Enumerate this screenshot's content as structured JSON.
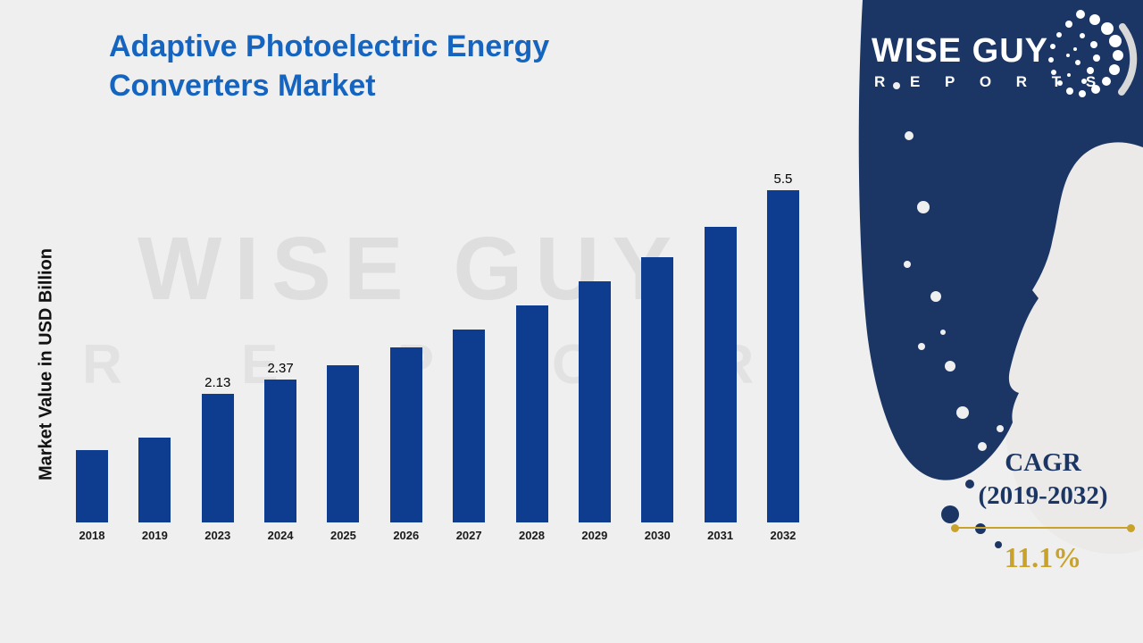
{
  "header": {
    "title": "Adaptive Photoelectric Energy Converters Market"
  },
  "logo": {
    "line1": "WISE GUY",
    "line2": "R E P O R T S"
  },
  "watermark": {
    "line1": "WISE GUY",
    "line2": "R E P O R T S"
  },
  "cagr": {
    "label": "CAGR",
    "range": "(2019-2032)",
    "value": "11.1%"
  },
  "chart_data": {
    "type": "bar",
    "title": "Adaptive Photoelectric Energy Converters Market",
    "xlabel": "",
    "ylabel": "Market Value in USD Billion",
    "categories": [
      "2018",
      "2019",
      "2023",
      "2024",
      "2025",
      "2026",
      "2027",
      "2028",
      "2029",
      "2030",
      "2031",
      "2032"
    ],
    "values": [
      1.2,
      1.4,
      2.13,
      2.37,
      2.6,
      2.9,
      3.2,
      3.6,
      4.0,
      4.4,
      4.9,
      5.5
    ],
    "data_labels": [
      "",
      "",
      "2.13",
      "2.37",
      "",
      "",
      "",
      "",
      "",
      "",
      "",
      "5.5"
    ],
    "ylim": [
      0,
      5.8
    ],
    "bar_color": "#0e3d8f",
    "grid": false,
    "legend": "none"
  },
  "colors": {
    "background": "#efefef",
    "title_blue": "#1565c0",
    "bar_navy": "#0e3d8f",
    "brand_navy": "#1b3665",
    "gold": "#c9a22b",
    "watermark_gray": "#dedede",
    "text_dark": "#1a1a1a",
    "face_gray": "#ebeae8",
    "logo_white": "#ffffff"
  }
}
